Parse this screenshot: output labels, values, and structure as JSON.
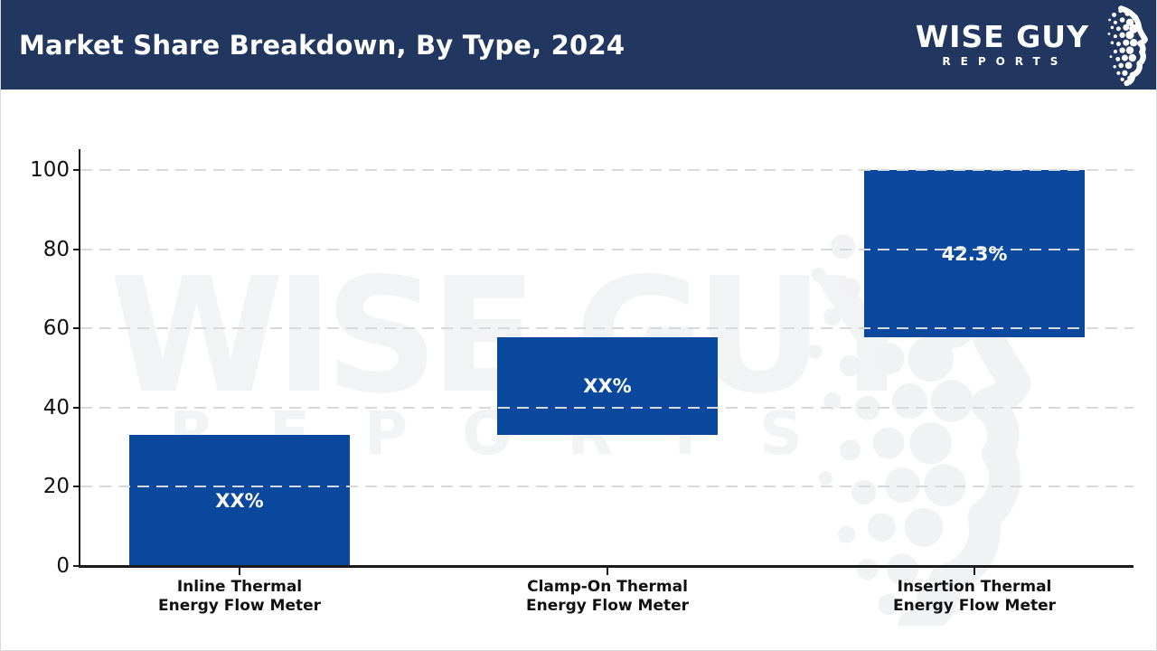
{
  "header": {
    "title": "Market Share Breakdown, By Type, 2024",
    "logo": {
      "name": "WISE GUY",
      "subname": "REPORTS"
    }
  },
  "watermark": {
    "name": "WISE GUY",
    "subname": "REPORTS"
  },
  "icons": {
    "logo_face": "wiseguy-dotted-face-profile-icon"
  },
  "colors": {
    "header_bg": "#21375f",
    "bar": "#0a489d",
    "gridline": "#d9d9d9",
    "axis": "#1a1a1a",
    "bar_label": "#ffffff",
    "watermark": "#f2f3f5"
  },
  "chart_data": {
    "type": "bar",
    "variant": "floating-segment (waterfall-style market share breakdown)",
    "title": "Market Share Breakdown, By Type, 2024",
    "categories": [
      [
        "Inline Thermal",
        "Energy Flow Meter"
      ],
      [
        "Clamp-On Thermal",
        "Energy Flow Meter"
      ],
      [
        "Insertion Thermal",
        "Energy Flow Meter"
      ]
    ],
    "bars": [
      {
        "category": "Inline Thermal Energy Flow Meter",
        "start": 0,
        "end": 33,
        "label": "XX%"
      },
      {
        "category": "Clamp-On Thermal Energy Flow Meter",
        "start": 33,
        "end": 57.7,
        "label": "XX%"
      },
      {
        "category": "Insertion Thermal Energy Flow Meter",
        "start": 57.7,
        "end": 100,
        "label": "42.3%"
      }
    ],
    "ylim": [
      0,
      100
    ],
    "yticks": [
      0,
      20,
      40,
      60,
      80,
      100
    ],
    "xlabel": "",
    "ylabel": "",
    "grid": "horizontal dashed",
    "legend": "none"
  }
}
